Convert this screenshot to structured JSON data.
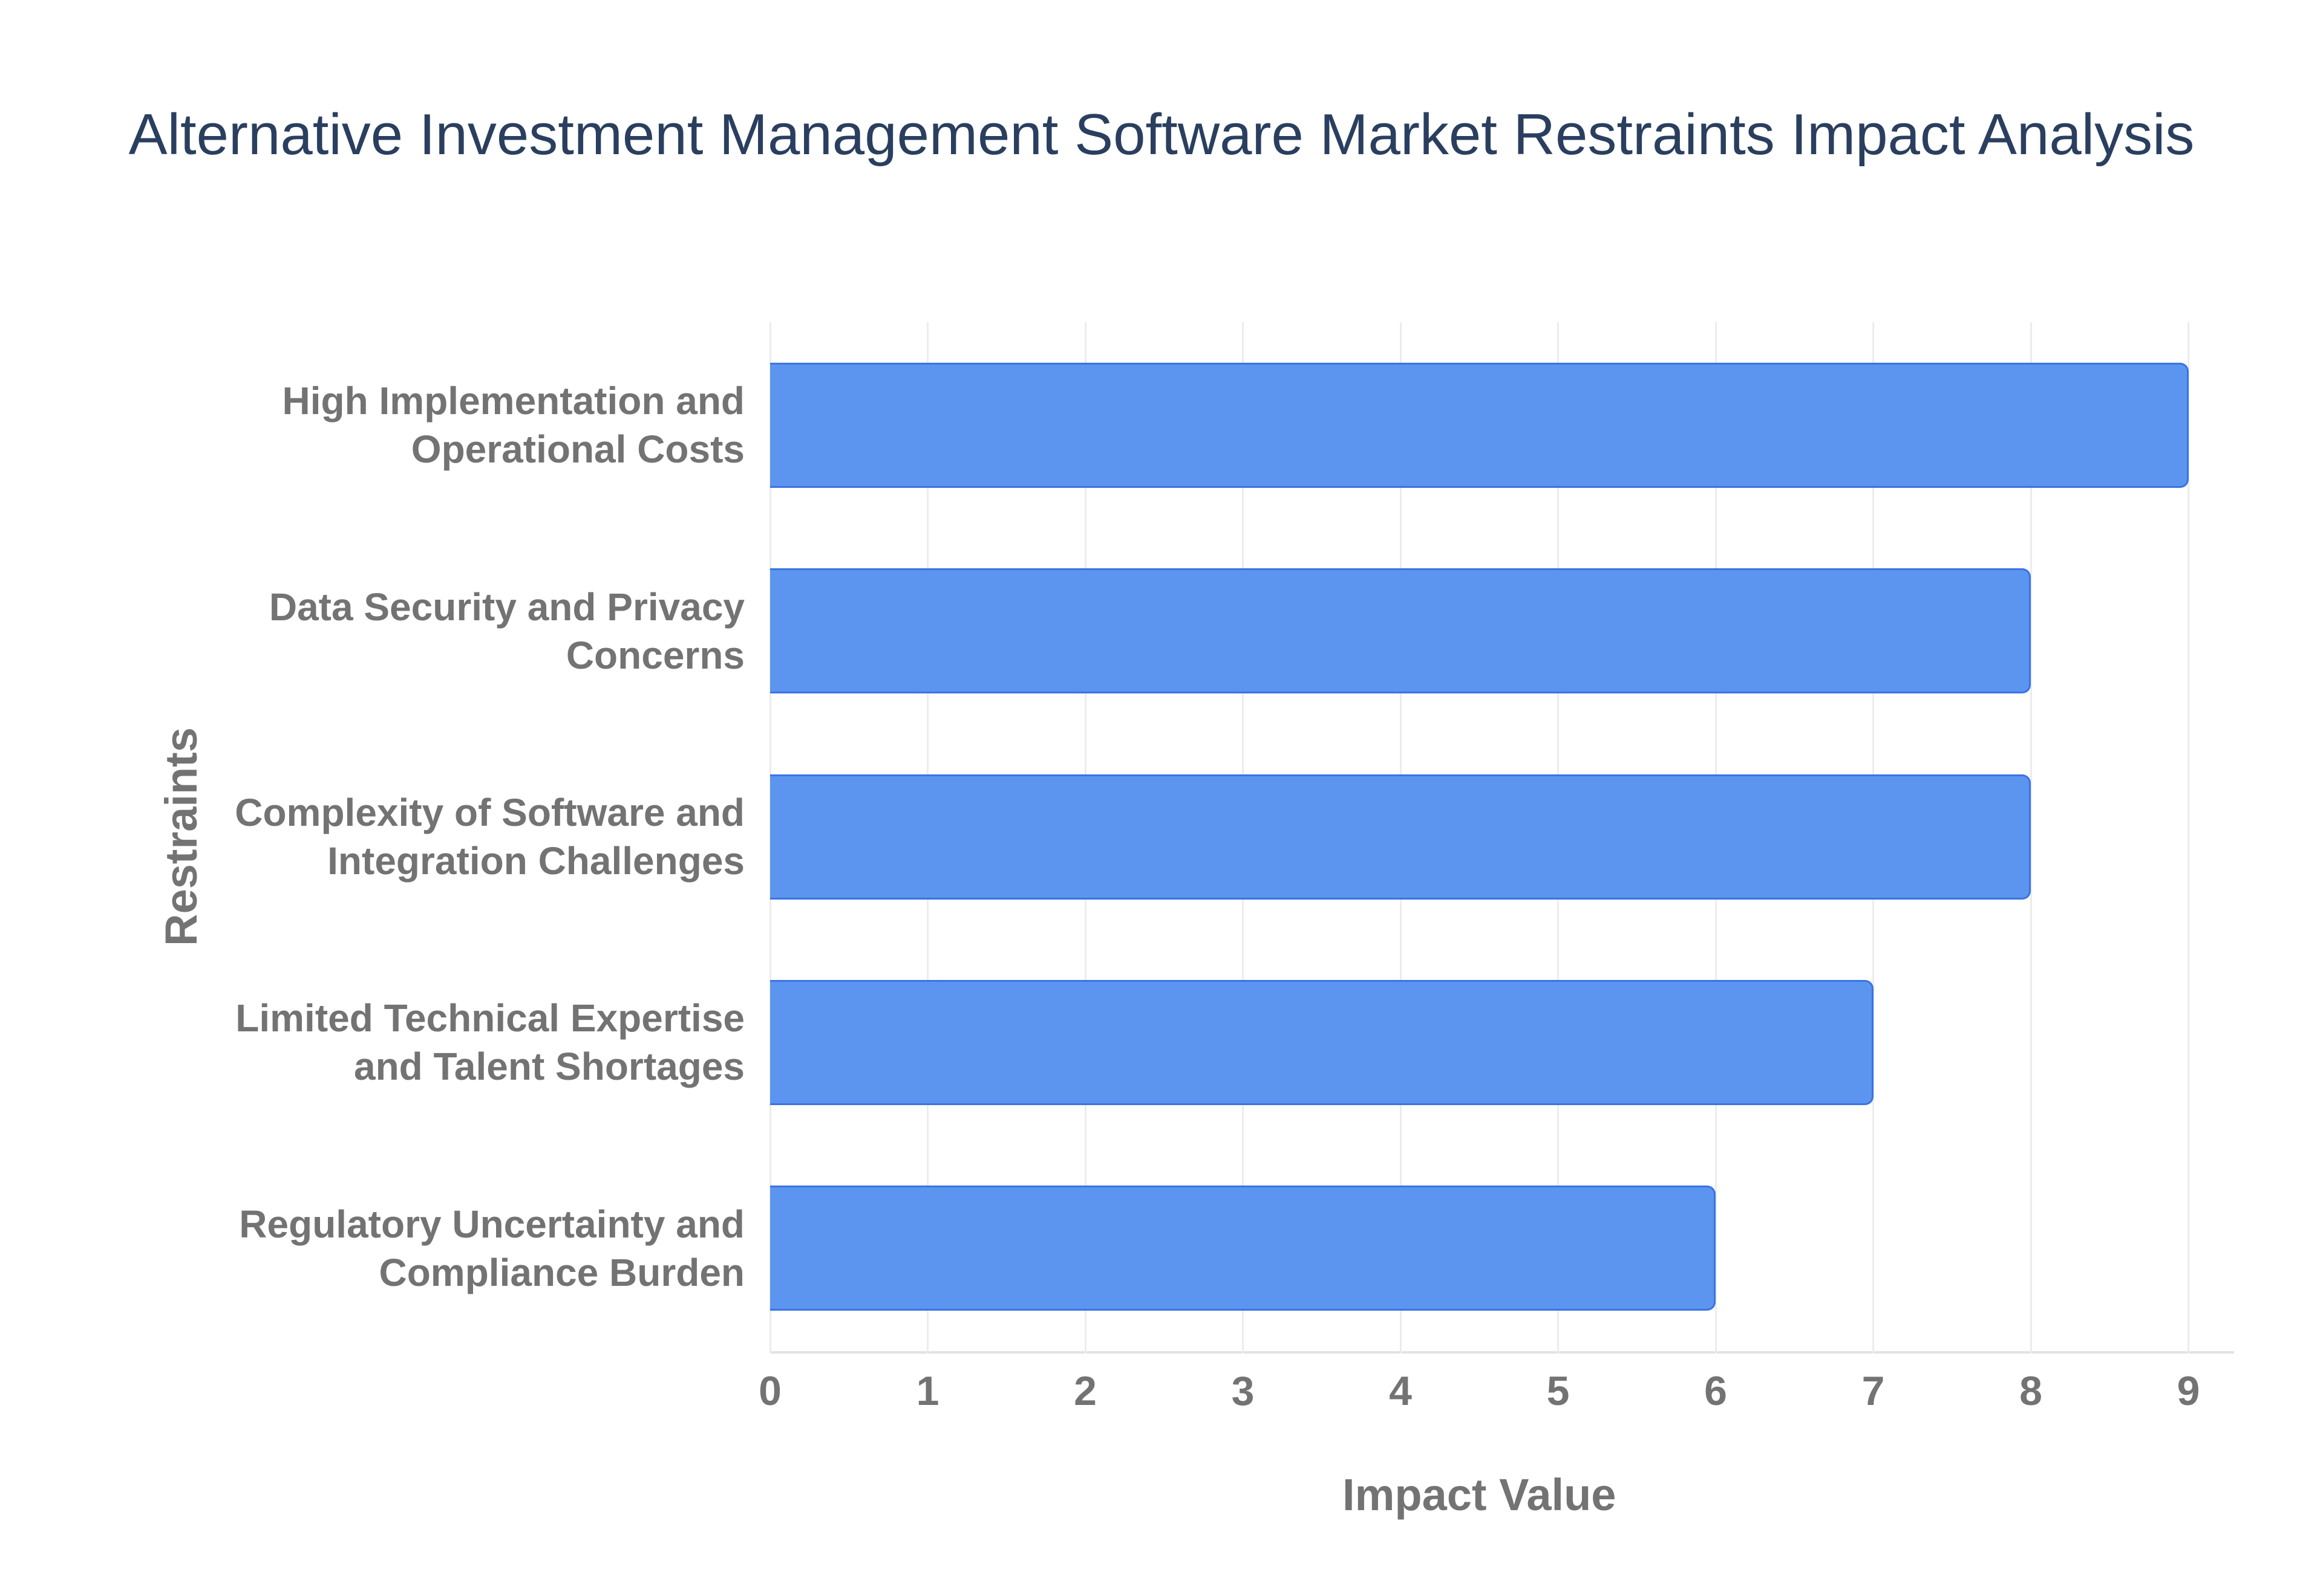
{
  "title": "Alternative Investment Management Software Market Restraints Impact Analysis",
  "chart_data": {
    "type": "bar",
    "orientation": "horizontal",
    "title": "Alternative Investment Management Software Market Restraints Impact Analysis",
    "categories": [
      "High Implementation and Operational Costs",
      "Data Security and Privacy Concerns",
      "Complexity of Software and Integration Challenges",
      "Limited Technical Expertise and Talent Shortages",
      "Regulatory Uncertainty and Compliance Burden"
    ],
    "label_lines": [
      [
        "High Implementation and",
        "Operational Costs"
      ],
      [
        "Data Security and Privacy",
        "Concerns"
      ],
      [
        "Complexity of Software and",
        "Integration Challenges"
      ],
      [
        "Limited Technical Expertise",
        "and Talent Shortages"
      ],
      [
        "Regulatory Uncertainty and",
        "Compliance Burden"
      ]
    ],
    "values": [
      9,
      8,
      8,
      7,
      6
    ],
    "xlabel": "Impact Value",
    "ylabel": "Restraints",
    "xticks": [
      0,
      1,
      2,
      3,
      4,
      5,
      6,
      7,
      8,
      9
    ],
    "xlim": [
      0,
      9.3
    ],
    "grid": "vertical",
    "legend": "none",
    "colors": {
      "bar_fill": "#5b95ef",
      "bar_border": "#3b73e3",
      "gridline": "#ececec",
      "axis_line": "#e2e2e2",
      "label_text": "#737373",
      "title_text": "#2a3f5f",
      "background": "#ffffff"
    }
  }
}
